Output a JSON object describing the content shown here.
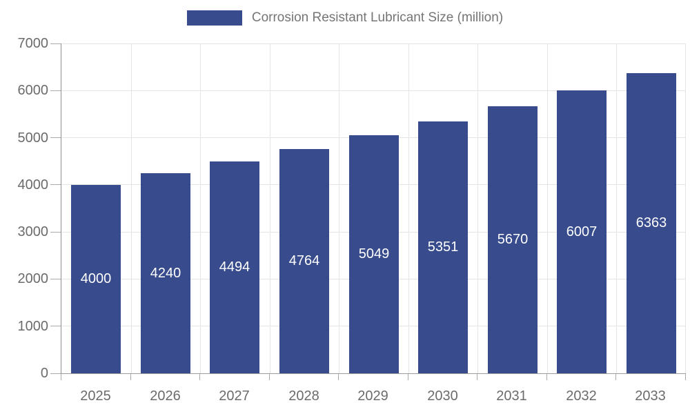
{
  "page": {
    "background": "#ffffff"
  },
  "legend": {
    "label": "Corrosion Resistant Lubricant Size (million)",
    "swatch_color": "#374b8d"
  },
  "chart_data": {
    "type": "bar",
    "title": "",
    "xlabel": "",
    "ylabel": "",
    "categories": [
      "2025",
      "2026",
      "2027",
      "2028",
      "2029",
      "2030",
      "2031",
      "2032",
      "2033"
    ],
    "series": [
      {
        "name": "Corrosion Resistant Lubricant Size (million)",
        "values": [
          4000,
          4240,
          4494,
          4764,
          5049,
          5351,
          5670,
          6007,
          6363
        ]
      }
    ],
    "ylim": [
      0,
      7000
    ],
    "y_ticks": [
      0,
      1000,
      2000,
      3000,
      4000,
      5000,
      6000,
      7000
    ],
    "grid": true,
    "legend_position": "top-center",
    "value_labels": "inside-center",
    "colors": {
      "bar": "#374b8d",
      "value_label": "#ffffff",
      "axis_text": "#6b6b6b",
      "legend_text": "#757575",
      "grid_line": "#e4e4e4",
      "axis_line": "#9b9b9b"
    }
  }
}
